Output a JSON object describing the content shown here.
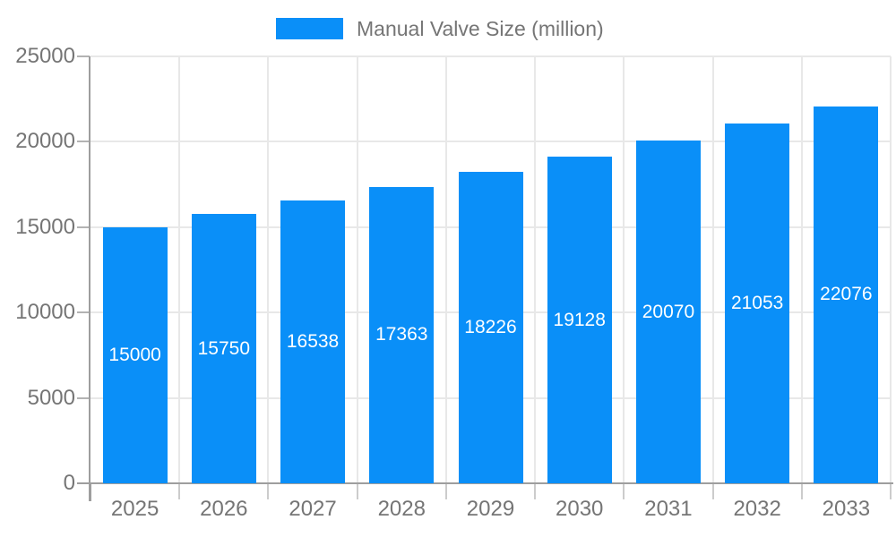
{
  "legend": {
    "label": "Manual Valve Size (million)"
  },
  "chart_data": {
    "type": "bar",
    "title": "",
    "categories": [
      "2025",
      "2026",
      "2027",
      "2028",
      "2029",
      "2030",
      "2031",
      "2032",
      "2033"
    ],
    "series": [
      {
        "name": "Manual Valve Size (million)",
        "values": [
          15000,
          15750,
          16538,
          17363,
          18226,
          19128,
          20070,
          21053,
          22076
        ]
      }
    ],
    "bar_value_labels": [
      "15000",
      "15750",
      "16538",
      "17363",
      "18226",
      "19128",
      "20070",
      "21053",
      "22076"
    ],
    "xlabel": "",
    "ylabel": "",
    "ylim": [
      0,
      25000
    ],
    "yticks": [
      0,
      5000,
      10000,
      15000,
      20000,
      25000
    ],
    "grid": "horizontal-and-vertical",
    "legend_position": "top-center",
    "bar_label_position": "inside-center",
    "colors": {
      "bar": "#0a8ff8",
      "axis_line": "#9e9e9e",
      "gridline": "#e8e8e8",
      "tick_mark_y": "#b3b3b3",
      "tick_mark_x": "#cccccc",
      "axis_text": "#757575",
      "legend_text": "#757575",
      "bar_label_text": "#ffffff",
      "background": "#ffffff"
    }
  }
}
